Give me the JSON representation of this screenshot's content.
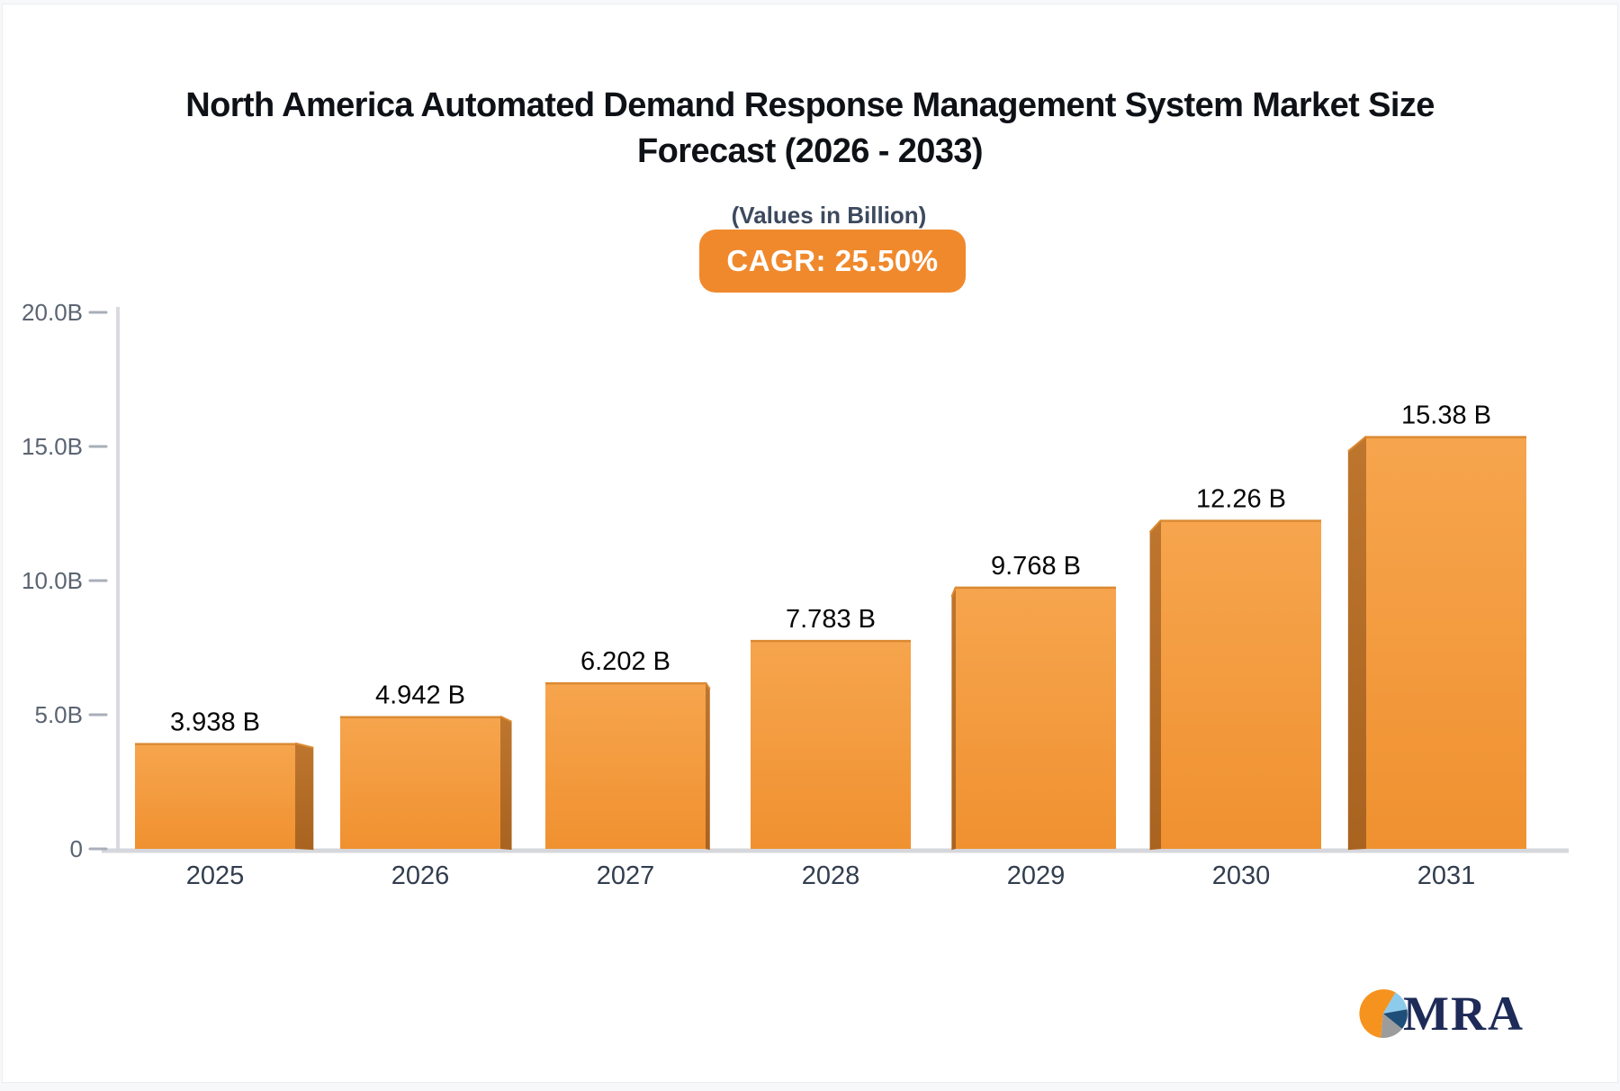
{
  "page": {
    "background": "#f7f8fa",
    "card_background": "#ffffff"
  },
  "header": {
    "title_line1": "North America Automated Demand Response Management System Market Size",
    "title_line2": "Forecast (2026 - 2033)",
    "subtitle": "(Values in Billion)",
    "cagr_badge": "CAGR: 25.50%",
    "badge_color": "#f0892c"
  },
  "chart_data": {
    "type": "bar",
    "title": "North America Automated Demand Response Management System Market Size Forecast (2026 - 2033)",
    "subtitle": "(Values in Billion)",
    "cagr": "25.50%",
    "categories": [
      "2025",
      "2026",
      "2027",
      "2028",
      "2029",
      "2030",
      "2031"
    ],
    "values": [
      3.938,
      4.942,
      6.202,
      7.783,
      9.768,
      12.26,
      15.38
    ],
    "value_labels": [
      "3.938 B",
      "4.942 B",
      "6.202 B",
      "7.783 B",
      "9.768 B",
      "12.26 B",
      "15.38 B"
    ],
    "unit": "Billion",
    "ylim": [
      0,
      20
    ],
    "yticks": [
      0,
      5,
      10,
      15,
      20
    ],
    "ytick_labels": [
      "0",
      "5.0B",
      "10.0B",
      "15.0B",
      "20.0B"
    ],
    "grid": false,
    "legend": "none",
    "bar_style": "3d",
    "colors": {
      "front_top": "#f6a54e",
      "front_bottom": "#f09130",
      "side_top": "#be762e",
      "side_bottom": "#a96320",
      "top_edge": "#db8a33",
      "axis_line": "#d9dadf",
      "baseline": "#d6d7dc",
      "tick": "#a8afb9",
      "ytick_text": "#5b6472",
      "xtick_text": "#323d4f",
      "value_text": "#060606"
    }
  },
  "logo": {
    "text": "MRA",
    "colors": {
      "orange": "#f6921e",
      "light_blue": "#8dcbec",
      "navy": "#1f4e79",
      "gray": "#9c9c9c",
      "text": "#1e2b58"
    }
  }
}
